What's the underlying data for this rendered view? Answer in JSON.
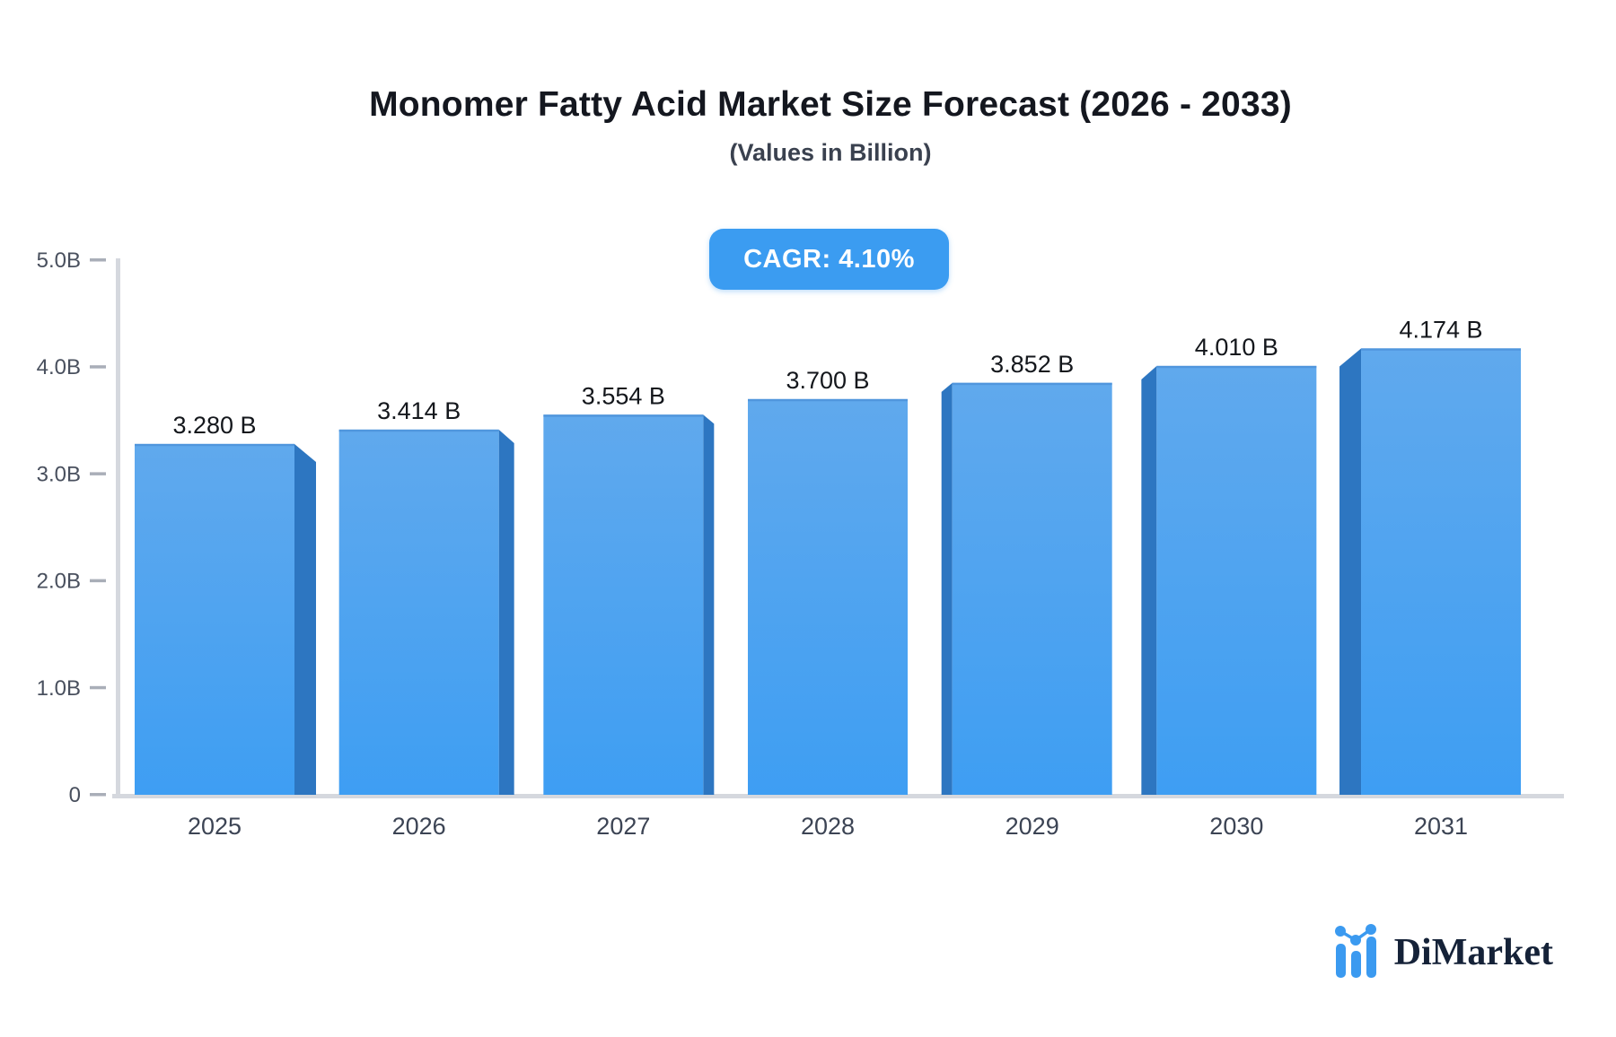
{
  "title": "Monomer Fatty Acid Market Size Forecast (2026 - 2033)",
  "subtitle": "(Values in Billion)",
  "badge": {
    "label": "CAGR: 4.10%"
  },
  "brand": {
    "name": "DiMarket"
  },
  "chart_data": {
    "type": "bar",
    "title": "Monomer Fatty Acid Market Size Forecast (2026 - 2033)",
    "subtitle": "(Values in Billion)",
    "categories": [
      "2025",
      "2026",
      "2027",
      "2028",
      "2029",
      "2030",
      "2031"
    ],
    "values": [
      3.28,
      3.414,
      3.554,
      3.7,
      3.852,
      4.01,
      4.174
    ],
    "value_labels": [
      "3.280 B",
      "3.414 B",
      "3.554 B",
      "3.700 B",
      "3.852 B",
      "4.010 B",
      "4.174 B"
    ],
    "xlabel": "",
    "ylabel": "",
    "ylim": [
      0,
      5
    ],
    "ytick_values": [
      0,
      1,
      2,
      3,
      4,
      5
    ],
    "ytick_labels": [
      "0",
      "1.0B",
      "2.0B",
      "3.0B",
      "4.0B",
      "5.0B"
    ],
    "grid": false,
    "legend": "none",
    "cagr": "4.10%",
    "colors": {
      "bar_top": "#60a9ed",
      "bar_bottom": "#3e9ef3",
      "bar_side": "#2d76c1",
      "bar_top_edge": "#4e93d9",
      "axis_line": "#d5d8de",
      "tick_dash": "#a9aeb8",
      "ytick_text": "#49505e",
      "xtick_text": "#3c4454",
      "value_text": "#14171c",
      "badge_bg": "#3b9cf1",
      "brand_blue": "#3b9af0",
      "brand_navy": "#152238"
    }
  }
}
